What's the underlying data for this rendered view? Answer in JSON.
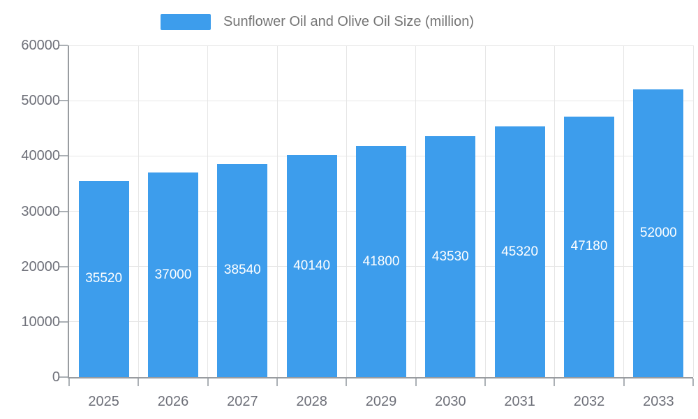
{
  "chart_data": {
    "type": "bar",
    "legend": {
      "label": "Sunflower Oil and Olive Oil Size (million)",
      "position": "top"
    },
    "categories": [
      "2025",
      "2026",
      "2027",
      "2028",
      "2029",
      "2030",
      "2031",
      "2032",
      "2033"
    ],
    "series": [
      {
        "name": "Sunflower Oil and Olive Oil Size (million)",
        "values": [
          35520,
          37000,
          38540,
          40140,
          41800,
          43530,
          45320,
          47180,
          52000
        ]
      }
    ],
    "bar_value_labels": [
      "35520",
      "37000",
      "38540",
      "40140",
      "41800",
      "43530",
      "45320",
      "47180",
      "52000"
    ],
    "xlabel": "",
    "ylabel": "",
    "ylim": [
      0,
      60000
    ],
    "yticks": [
      0,
      10000,
      20000,
      30000,
      40000,
      50000,
      60000
    ],
    "grid": true,
    "colors": {
      "bar": "#3D9DEC",
      "bar_label_text": "#FFFFFF",
      "grid_line": "#E6E6E6",
      "axis_line": "#999CA0",
      "tick_mark": "#ABB0B5",
      "axis_text": "#6E7079",
      "legend_text": "#757575",
      "background": "#FFFFFF"
    }
  }
}
